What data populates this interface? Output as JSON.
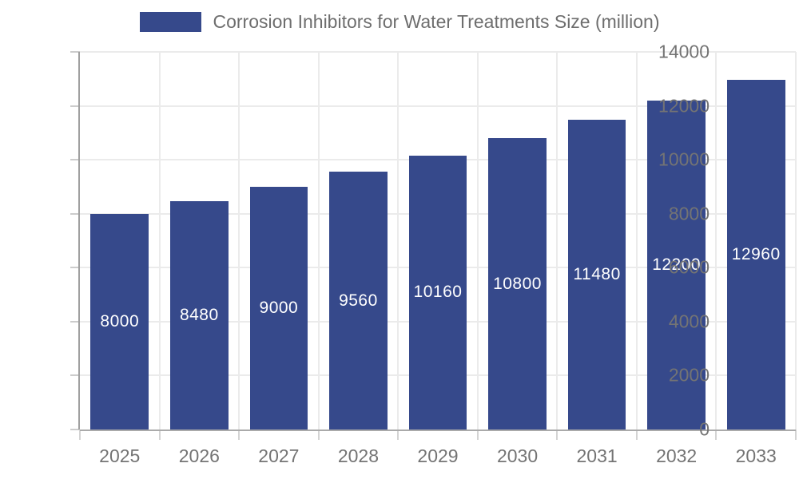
{
  "legend": {
    "label": "Corrosion Inhibitors for Water Treatments Size (million)"
  },
  "chart_data": {
    "type": "bar",
    "title": "Corrosion Inhibitors for Water Treatments Size (million)",
    "categories": [
      "2025",
      "2026",
      "2027",
      "2028",
      "2029",
      "2030",
      "2031",
      "2032",
      "2033"
    ],
    "values": [
      8000,
      8480,
      9000,
      9560,
      10160,
      10800,
      11480,
      12200,
      12960
    ],
    "value_labels": [
      "8000",
      "8480",
      "9000",
      "9560",
      "10160",
      "10800",
      "11480",
      "12200",
      "12960"
    ],
    "xlabel": "",
    "ylabel": "",
    "ylim": [
      0,
      14000
    ],
    "yticks": [
      0,
      2000,
      4000,
      6000,
      8000,
      10000,
      12000,
      14000
    ],
    "grid": true,
    "legend_position": "top",
    "colors": {
      "bar": "#36498b",
      "value_label": "#ffffff",
      "grid_line": "#ebebeb",
      "axis_line": "#a0a0a0",
      "tick_label": "#747474",
      "title_text": "#6e6e6e"
    }
  }
}
